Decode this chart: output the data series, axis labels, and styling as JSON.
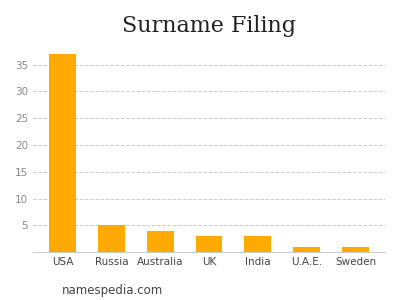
{
  "title": "Surname Filing",
  "categories": [
    "USA",
    "Russia",
    "Australia",
    "UK",
    "India",
    "U.A.E.",
    "Sweden"
  ],
  "values": [
    37,
    5,
    4,
    3,
    3,
    1,
    1
  ],
  "bar_color": "#FFAA00",
  "ylim": [
    0,
    39
  ],
  "yticks": [
    5,
    10,
    15,
    20,
    25,
    30,
    35
  ],
  "background_color": "#ffffff",
  "grid_color": "#cccccc",
  "footer_text": "namespedia.com",
  "title_fontsize": 16,
  "tick_fontsize": 7.5,
  "footer_fontsize": 8.5,
  "bar_width": 0.55
}
